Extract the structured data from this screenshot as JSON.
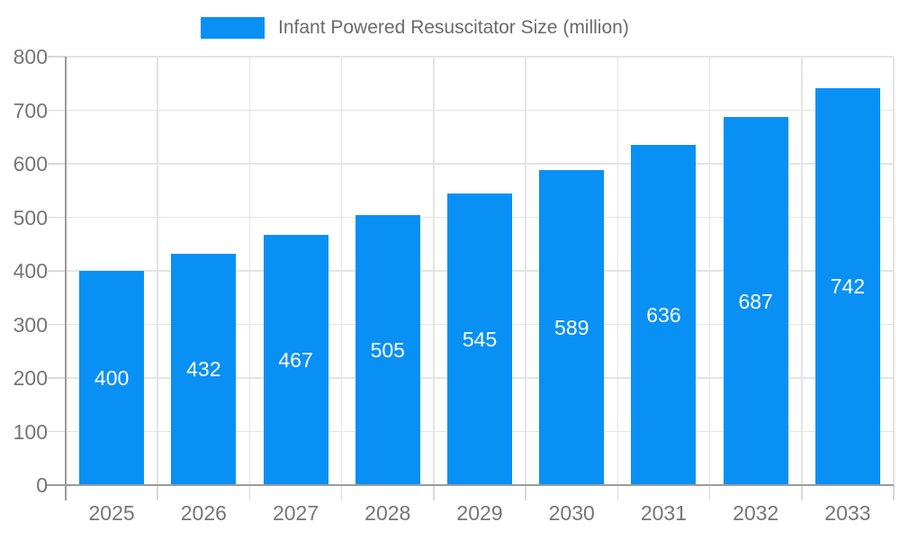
{
  "chart_data": {
    "type": "bar",
    "title": "Infant Powered Resuscitator Size (million)",
    "categories": [
      "2025",
      "2026",
      "2027",
      "2028",
      "2029",
      "2030",
      "2031",
      "2032",
      "2033"
    ],
    "values": [
      400,
      432,
      467,
      505,
      545,
      589,
      636,
      687,
      742
    ],
    "xlabel": "",
    "ylabel": "",
    "ylim": [
      0,
      800
    ],
    "y_tick_step": 100,
    "y_tick_labels": [
      "0",
      "100",
      "200",
      "300",
      "400",
      "500",
      "600",
      "700",
      "800"
    ],
    "grid": true,
    "legend": {
      "position": "top",
      "label": "Infant Powered Resuscitator Size (million)"
    },
    "value_labels": "inside-center",
    "colors": {
      "bar": "#0990F5",
      "value_label": "#FFFFFF",
      "grid": "#E4E4E4",
      "tick": "#D9D9D9",
      "axis": "#9B9B9B",
      "tick_text": "#757575",
      "legend_text": "#6A6A6A",
      "background": "#FFFFFF"
    }
  }
}
